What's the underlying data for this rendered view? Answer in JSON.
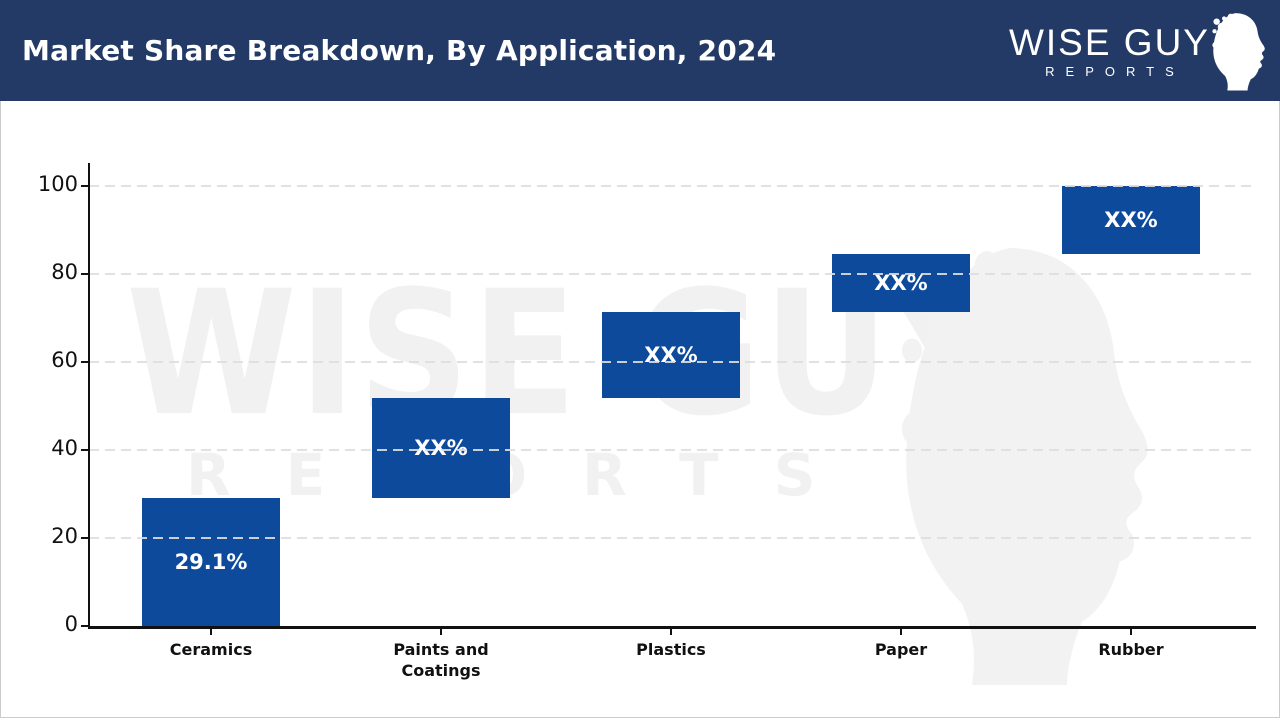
{
  "header": {
    "title": "Market Share Breakdown, By Application, 2024",
    "logo": {
      "line1": "WISE GUY",
      "line2": "REPORTS"
    }
  },
  "watermark": {
    "line1": "WISE GUY",
    "line2": "REPORTS"
  },
  "colors": {
    "header_bg": "#233a66",
    "bar": "#0d4a9c",
    "value_label": "#ffffff",
    "gridline": "#dedede",
    "watermark": "#f1f1f1"
  },
  "chart_data": {
    "type": "bar",
    "subtype": "waterfall",
    "title": "Market Share Breakdown, By Application, 2024",
    "xlabel": "",
    "ylabel": "",
    "categories": [
      "Ceramics",
      "Paints and Coatings",
      "Plastics",
      "Paper",
      "Rubber"
    ],
    "segments": [
      {
        "category": "Ceramics",
        "start": 0,
        "end": 29.1,
        "label": "29.1%"
      },
      {
        "category": "Paints and Coatings",
        "start": 29.1,
        "end": 51.9,
        "label": "XX%"
      },
      {
        "category": "Plastics",
        "start": 51.9,
        "end": 71.4,
        "label": "XX%"
      },
      {
        "category": "Paper",
        "start": 71.4,
        "end": 84.5,
        "label": "XX%"
      },
      {
        "category": "Rubber",
        "start": 84.5,
        "end": 100,
        "label": "XX%"
      }
    ],
    "yticks": [
      0,
      20,
      40,
      60,
      80,
      100
    ],
    "ylim": [
      0,
      105
    ],
    "grid": "dashed-horizontal",
    "legend": "none"
  }
}
